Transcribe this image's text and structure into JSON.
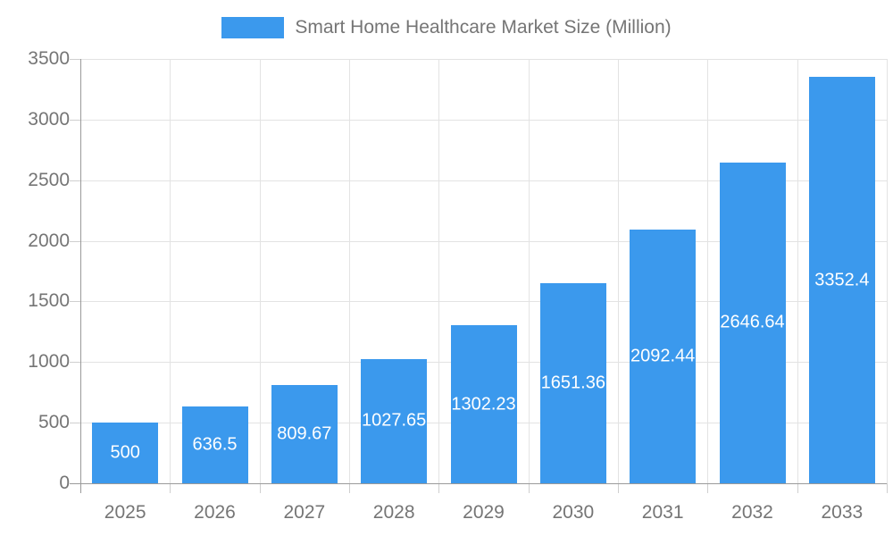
{
  "legend": {
    "label": "Smart Home Healthcare Market Size (Million)"
  },
  "chart_data": {
    "type": "bar",
    "title": "Smart Home Healthcare Market Size (Million)",
    "categories": [
      "2025",
      "2026",
      "2027",
      "2028",
      "2029",
      "2030",
      "2031",
      "2032",
      "2033"
    ],
    "series": [
      {
        "name": "Smart Home Healthcare Market Size (Million)",
        "values": [
          500,
          636.5,
          809.67,
          1027.65,
          1302.23,
          1651.36,
          2092.44,
          2646.64,
          3352.4
        ]
      }
    ],
    "value_labels": [
      "500",
      "636.5",
      "809.67",
      "1027.65",
      "1302.23",
      "1651.36",
      "2092.44",
      "2646.64",
      "3352.4"
    ],
    "xlabel": "",
    "ylabel": "",
    "ylim": [
      0,
      3500
    ],
    "y_ticks": [
      0,
      500,
      1000,
      1500,
      2000,
      2500,
      3000,
      3500
    ],
    "grid": true,
    "legend_position": "top",
    "colors": {
      "bar": "#3b99ed",
      "bar_value_label": "#ffffff",
      "axis_text": "#757575",
      "axis_line": "#9a9a9a",
      "gridline": "#e3e3e3"
    }
  }
}
